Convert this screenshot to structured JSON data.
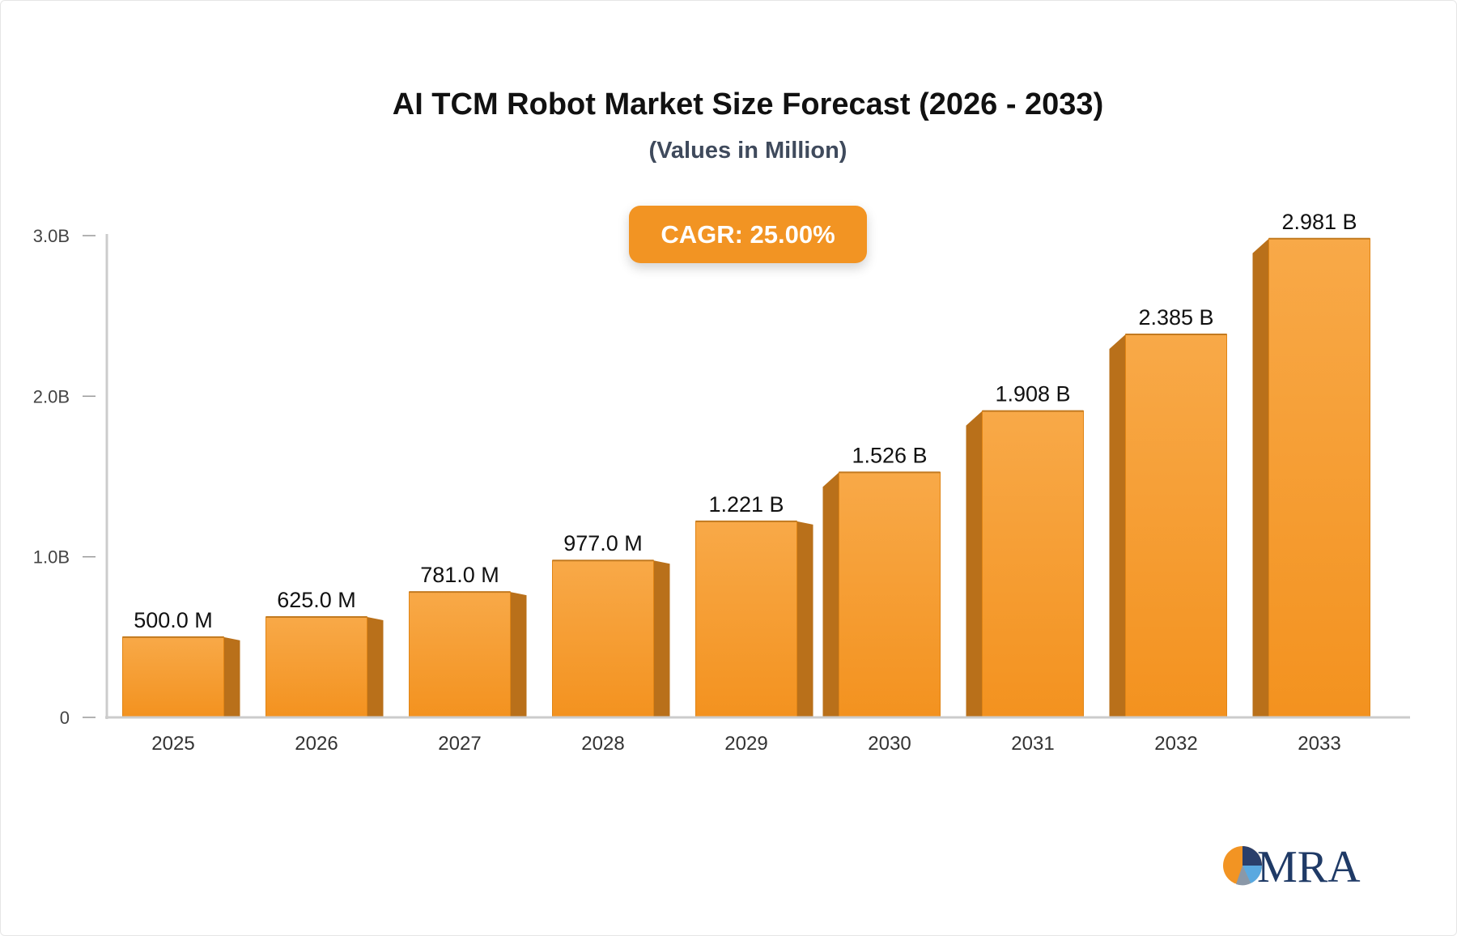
{
  "title": "AI TCM Robot Market Size Forecast (2026 - 2033)",
  "subtitle": "(Values in Million)",
  "cagr_label": "CAGR: 25.00%",
  "logo_text": "MRA",
  "colors": {
    "bar_front_top": "#f8a948",
    "bar_front_bottom": "#f3921f",
    "bar_side": "#b9701a",
    "bar_cap": "#c27a20",
    "axis": "#cccccc",
    "tick_text": "#444444",
    "label_text": "#111111",
    "badge": "#f29423"
  },
  "chart_data": {
    "type": "bar",
    "title": "AI TCM Robot Market Size Forecast (2026 - 2033)",
    "subtitle": "(Values in Million)",
    "categories": [
      "2025",
      "2026",
      "2027",
      "2028",
      "2029",
      "2030",
      "2031",
      "2032",
      "2033"
    ],
    "values": [
      500.0,
      625.0,
      781.0,
      977.0,
      1221,
      1526,
      1908,
      2385,
      2981
    ],
    "data_labels": [
      "500.0 M",
      "625.0 M",
      "781.0 M",
      "977.0 M",
      "1.221 B",
      "1.526 B",
      "1.908 B",
      "2.385 B",
      "2.981 B"
    ],
    "y_ticks": [
      0,
      1000,
      2000,
      3000
    ],
    "y_tick_labels": [
      "0",
      "1.0B",
      "2.0B",
      "3.0B"
    ],
    "ylim": [
      0,
      3000
    ],
    "grid": false,
    "legend": "none",
    "annotation": "CAGR: 25.00%"
  }
}
